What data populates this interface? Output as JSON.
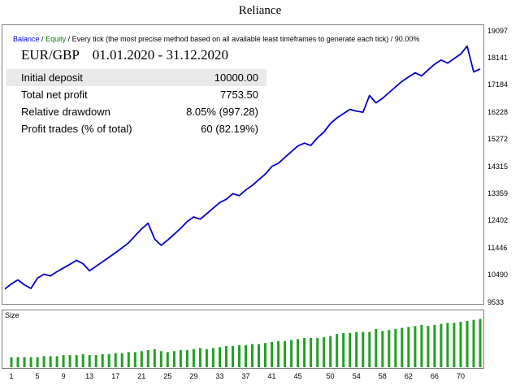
{
  "title": "Reliance",
  "legend": {
    "balance_label": "Balance",
    "equity_label": "Equity",
    "sep": " / ",
    "method": "Every tick (the most precise method based on all available least timeframes to generate each tick)",
    "quality": "90.00%"
  },
  "overlay": {
    "symbol": "EUR/GBP",
    "period": "01.01.2020 - 31.12.2020",
    "stats": [
      {
        "label": "Initial deposit",
        "value": "10000.00"
      },
      {
        "label": "Total net profit",
        "value": "7753.50"
      },
      {
        "label": "Relative drawdown",
        "value": "8.05% (997.28)"
      },
      {
        "label": "Profit trades (% of total)",
        "value": "60 (82.19%)"
      }
    ]
  },
  "size_panel_label": "Size",
  "colors": {
    "balance_line": "#0000c8",
    "size_bars": "#22a022",
    "frame_border": "#808080",
    "highlight_row": "#e9e9e9"
  },
  "chart_data": [
    {
      "type": "line",
      "name": "Balance",
      "color": "#0000c8",
      "xlim": [
        0,
        73
      ],
      "ylim": [
        9533,
        19097
      ],
      "x_ticks": [
        1,
        5,
        9,
        13,
        17,
        21,
        25,
        29,
        33,
        37,
        41,
        45,
        50,
        54,
        58,
        62,
        66,
        70
      ],
      "y_ticks": [
        19097,
        18141,
        17184,
        16228,
        15272,
        14315,
        13359,
        12402,
        11446,
        10490,
        9533
      ],
      "values": [
        10000,
        10180,
        10320,
        10150,
        10020,
        10380,
        10520,
        10460,
        10610,
        10740,
        10870,
        11010,
        10890,
        10640,
        10800,
        10960,
        11120,
        11280,
        11450,
        11630,
        11880,
        12120,
        12320,
        11760,
        11540,
        11720,
        11930,
        12140,
        12380,
        12540,
        12460,
        12650,
        12850,
        13050,
        13160,
        13360,
        13290,
        13490,
        13650,
        13850,
        14050,
        14320,
        14430,
        14640,
        14840,
        15040,
        15140,
        15060,
        15330,
        15530,
        15830,
        16030,
        16180,
        16330,
        16270,
        16230,
        16820,
        16560,
        16720,
        16920,
        17120,
        17320,
        17470,
        17620,
        17510,
        17720,
        17920,
        18070,
        17960,
        18120,
        18280,
        18560,
        17650,
        17753.5
      ]
    },
    {
      "type": "bar",
      "name": "Size",
      "color": "#22a022",
      "ylim": [
        0,
        0.5
      ],
      "values": [
        0.1,
        0.1,
        0.1,
        0.1,
        0.1,
        0.11,
        0.11,
        0.11,
        0.12,
        0.12,
        0.12,
        0.13,
        0.12,
        0.12,
        0.13,
        0.13,
        0.14,
        0.14,
        0.15,
        0.15,
        0.16,
        0.17,
        0.18,
        0.16,
        0.15,
        0.16,
        0.17,
        0.17,
        0.18,
        0.19,
        0.18,
        0.19,
        0.2,
        0.21,
        0.21,
        0.22,
        0.22,
        0.23,
        0.23,
        0.24,
        0.25,
        0.26,
        0.26,
        0.27,
        0.28,
        0.29,
        0.29,
        0.29,
        0.3,
        0.31,
        0.33,
        0.34,
        0.34,
        0.35,
        0.35,
        0.35,
        0.38,
        0.36,
        0.37,
        0.38,
        0.39,
        0.4,
        0.41,
        0.42,
        0.41,
        0.42,
        0.43,
        0.44,
        0.44,
        0.45,
        0.46,
        0.47,
        0.48
      ]
    }
  ]
}
